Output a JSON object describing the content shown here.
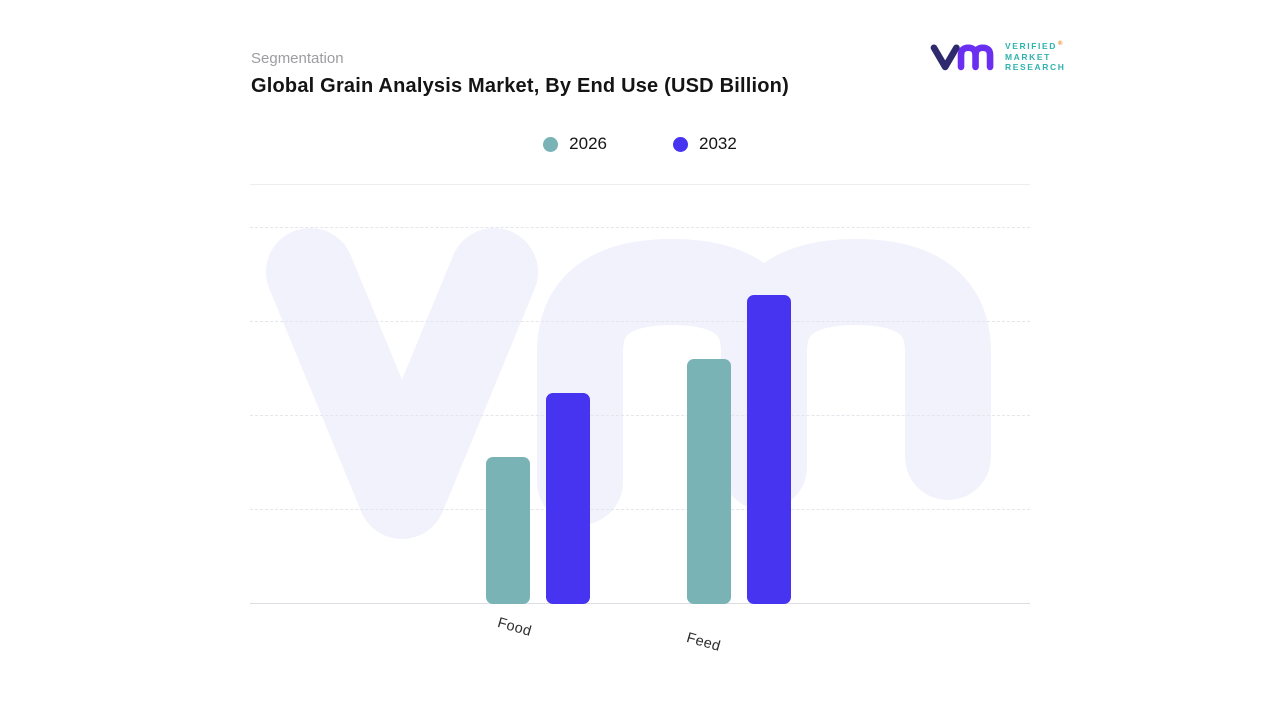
{
  "header": {
    "segment_label": "Segmentation",
    "title": "Global Grain Analysis Market, By End Use (USD Billion)"
  },
  "logo": {
    "lines": [
      "VERIFIED",
      "MARKET",
      "RESEARCH"
    ],
    "registered_mark": "®",
    "monogram_v_color": "#2e2a6d",
    "monogram_m_color": "#6a2ff1",
    "text_color": "#2fb3ae"
  },
  "chart_data": {
    "type": "bar",
    "title": "Global Grain Analysis Market, By End Use (USD Billion)",
    "categories": [
      "Food",
      "Feed"
    ],
    "series": [
      {
        "name": "2026",
        "color": "#79b3b5",
        "values": [
          3.9,
          6.5
        ]
      },
      {
        "name": "2032",
        "color": "#4734f0",
        "values": [
          5.6,
          8.2
        ]
      }
    ],
    "xlabel": "",
    "ylabel": "",
    "ylim": [
      0,
      10
    ],
    "grid": "horizontal-dashed",
    "legend_position": "top",
    "note": "no numeric axis labels shown; values estimated from gridlines"
  },
  "watermark": {
    "text": "vm",
    "color": "#f1f2fb"
  }
}
